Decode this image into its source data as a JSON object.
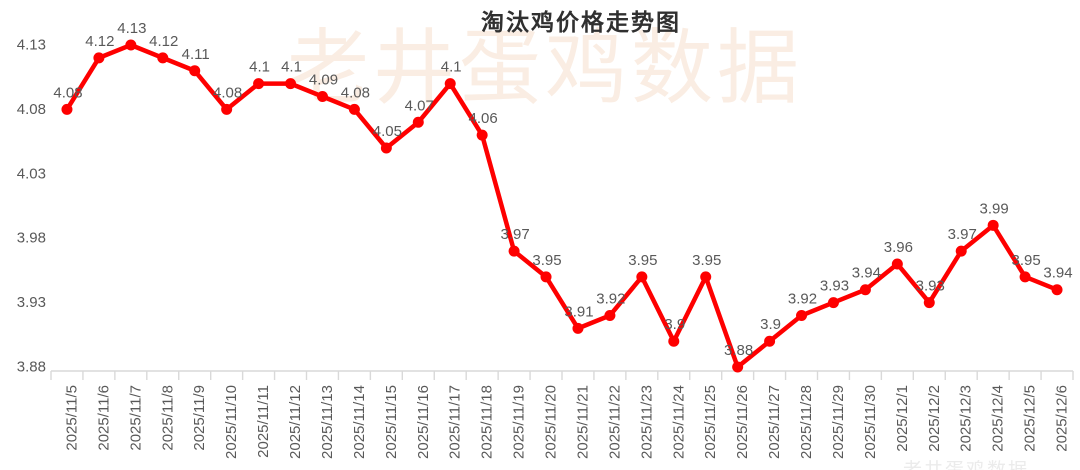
{
  "page": {
    "title": "淘汰鸡价格走势图",
    "watermark_text": "老井蛋鸡数据",
    "corner_watermark_text": "老井蛋鸡数据"
  },
  "colors": {
    "line": "#FE0000",
    "marker": "#FE0000",
    "data_label": "#595959",
    "axis_label": "#595959",
    "axis_line": "#D9D9D9",
    "title": "#303030",
    "watermark": "#FAEDE3",
    "corner_watermark": "#EBEBEB",
    "background": "#FFFFFF"
  },
  "chart_data": {
    "type": "line",
    "title": "淘汰鸡价格走势图",
    "xlabel": "",
    "ylabel": "",
    "grid": false,
    "legend_position": "none",
    "marker_style": "circle",
    "ylim": [
      3.88,
      4.13
    ],
    "y_tick_step": 0.05,
    "y_tick_labels": [
      "4.13",
      "4.08",
      "4.03",
      "3.98",
      "3.93",
      "3.88"
    ],
    "x": [
      "2025/11/5",
      "2025/11/6",
      "2025/11/7",
      "2025/11/8",
      "2025/11/9",
      "2025/11/10",
      "2025/11/11",
      "2025/11/12",
      "2025/11/13",
      "2025/11/14",
      "2025/11/15",
      "2025/11/16",
      "2025/11/17",
      "2025/11/18",
      "2025/11/19",
      "2025/11/20",
      "2025/11/21",
      "2025/11/22",
      "2025/11/23",
      "2025/11/24",
      "2025/11/25",
      "2025/11/26",
      "2025/11/27",
      "2025/11/28",
      "2025/11/29",
      "2025/11/30",
      "2025/12/1",
      "2025/12/2",
      "2025/12/3",
      "2025/12/4",
      "2025/12/5",
      "2025/12/6"
    ],
    "values": [
      4.08,
      4.12,
      4.13,
      4.12,
      4.11,
      4.08,
      4.1,
      4.1,
      4.09,
      4.08,
      4.05,
      4.07,
      4.1,
      4.06,
      3.97,
      3.95,
      3.91,
      3.92,
      3.95,
      3.9,
      3.95,
      3.88,
      3.9,
      3.92,
      3.93,
      3.94,
      3.96,
      3.93,
      3.97,
      3.99,
      3.95,
      3.94
    ],
    "point_labels": [
      "4.08",
      "4.12",
      "4.13",
      "4.12",
      "4.11",
      "4.08",
      "4.1",
      "4.1",
      "4.09",
      "4.08",
      "4.05",
      "4.07",
      "4.1",
      "4.06",
      "3.97",
      "3.95",
      "3.91",
      "3.92",
      "3.95",
      "3.9",
      "3.95",
      "3.88",
      "3.9",
      "3.92",
      "3.93",
      "3.94",
      "3.96",
      "3.93",
      "3.97",
      "3.99",
      "3.95",
      "3.94"
    ]
  }
}
